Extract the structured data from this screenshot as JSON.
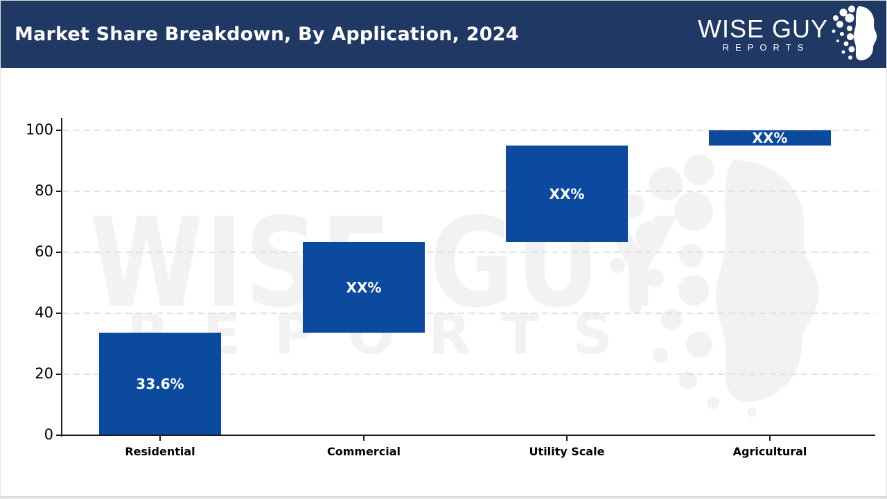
{
  "header": {
    "title": "Market Share Breakdown, By Application, 2024",
    "bg_color": "#1f3864",
    "logo": {
      "line1": "WISE GUY",
      "line2": "REPORTS"
    }
  },
  "watermark": {
    "line1": "WISE GUY",
    "line2": "REPORTS"
  },
  "chart_data": {
    "type": "bar",
    "subtype": "waterfall-floating-bars",
    "title": "Market Share Breakdown, By Application, 2024",
    "categories": [
      "Residential",
      "Commercial",
      "Utility Scale",
      "Agricultural"
    ],
    "segments": [
      {
        "category": "Residential",
        "start": 0,
        "end": 33.6,
        "value": 33.6,
        "label": "33.6%"
      },
      {
        "category": "Commercial",
        "start": 33.6,
        "end": 63.4,
        "value": 29.8,
        "label": "XX%"
      },
      {
        "category": "Utility Scale",
        "start": 63.4,
        "end": 95.0,
        "value": 31.6,
        "label": "XX%"
      },
      {
        "category": "Agricultural",
        "start": 95.0,
        "end": 100.0,
        "value": 5.0,
        "label": "XX%"
      }
    ],
    "xlabel": "",
    "ylabel": "",
    "ylim": [
      0,
      104
    ],
    "y_ticks": [
      0,
      20,
      40,
      60,
      80,
      100
    ],
    "grid": "horizontal-dashed",
    "legend": "none",
    "bar_color": "#0b4a9e",
    "bar_label_color": "#ffffff",
    "axis_color": "#1a1a1a",
    "grid_color": "#e1e1e1"
  }
}
